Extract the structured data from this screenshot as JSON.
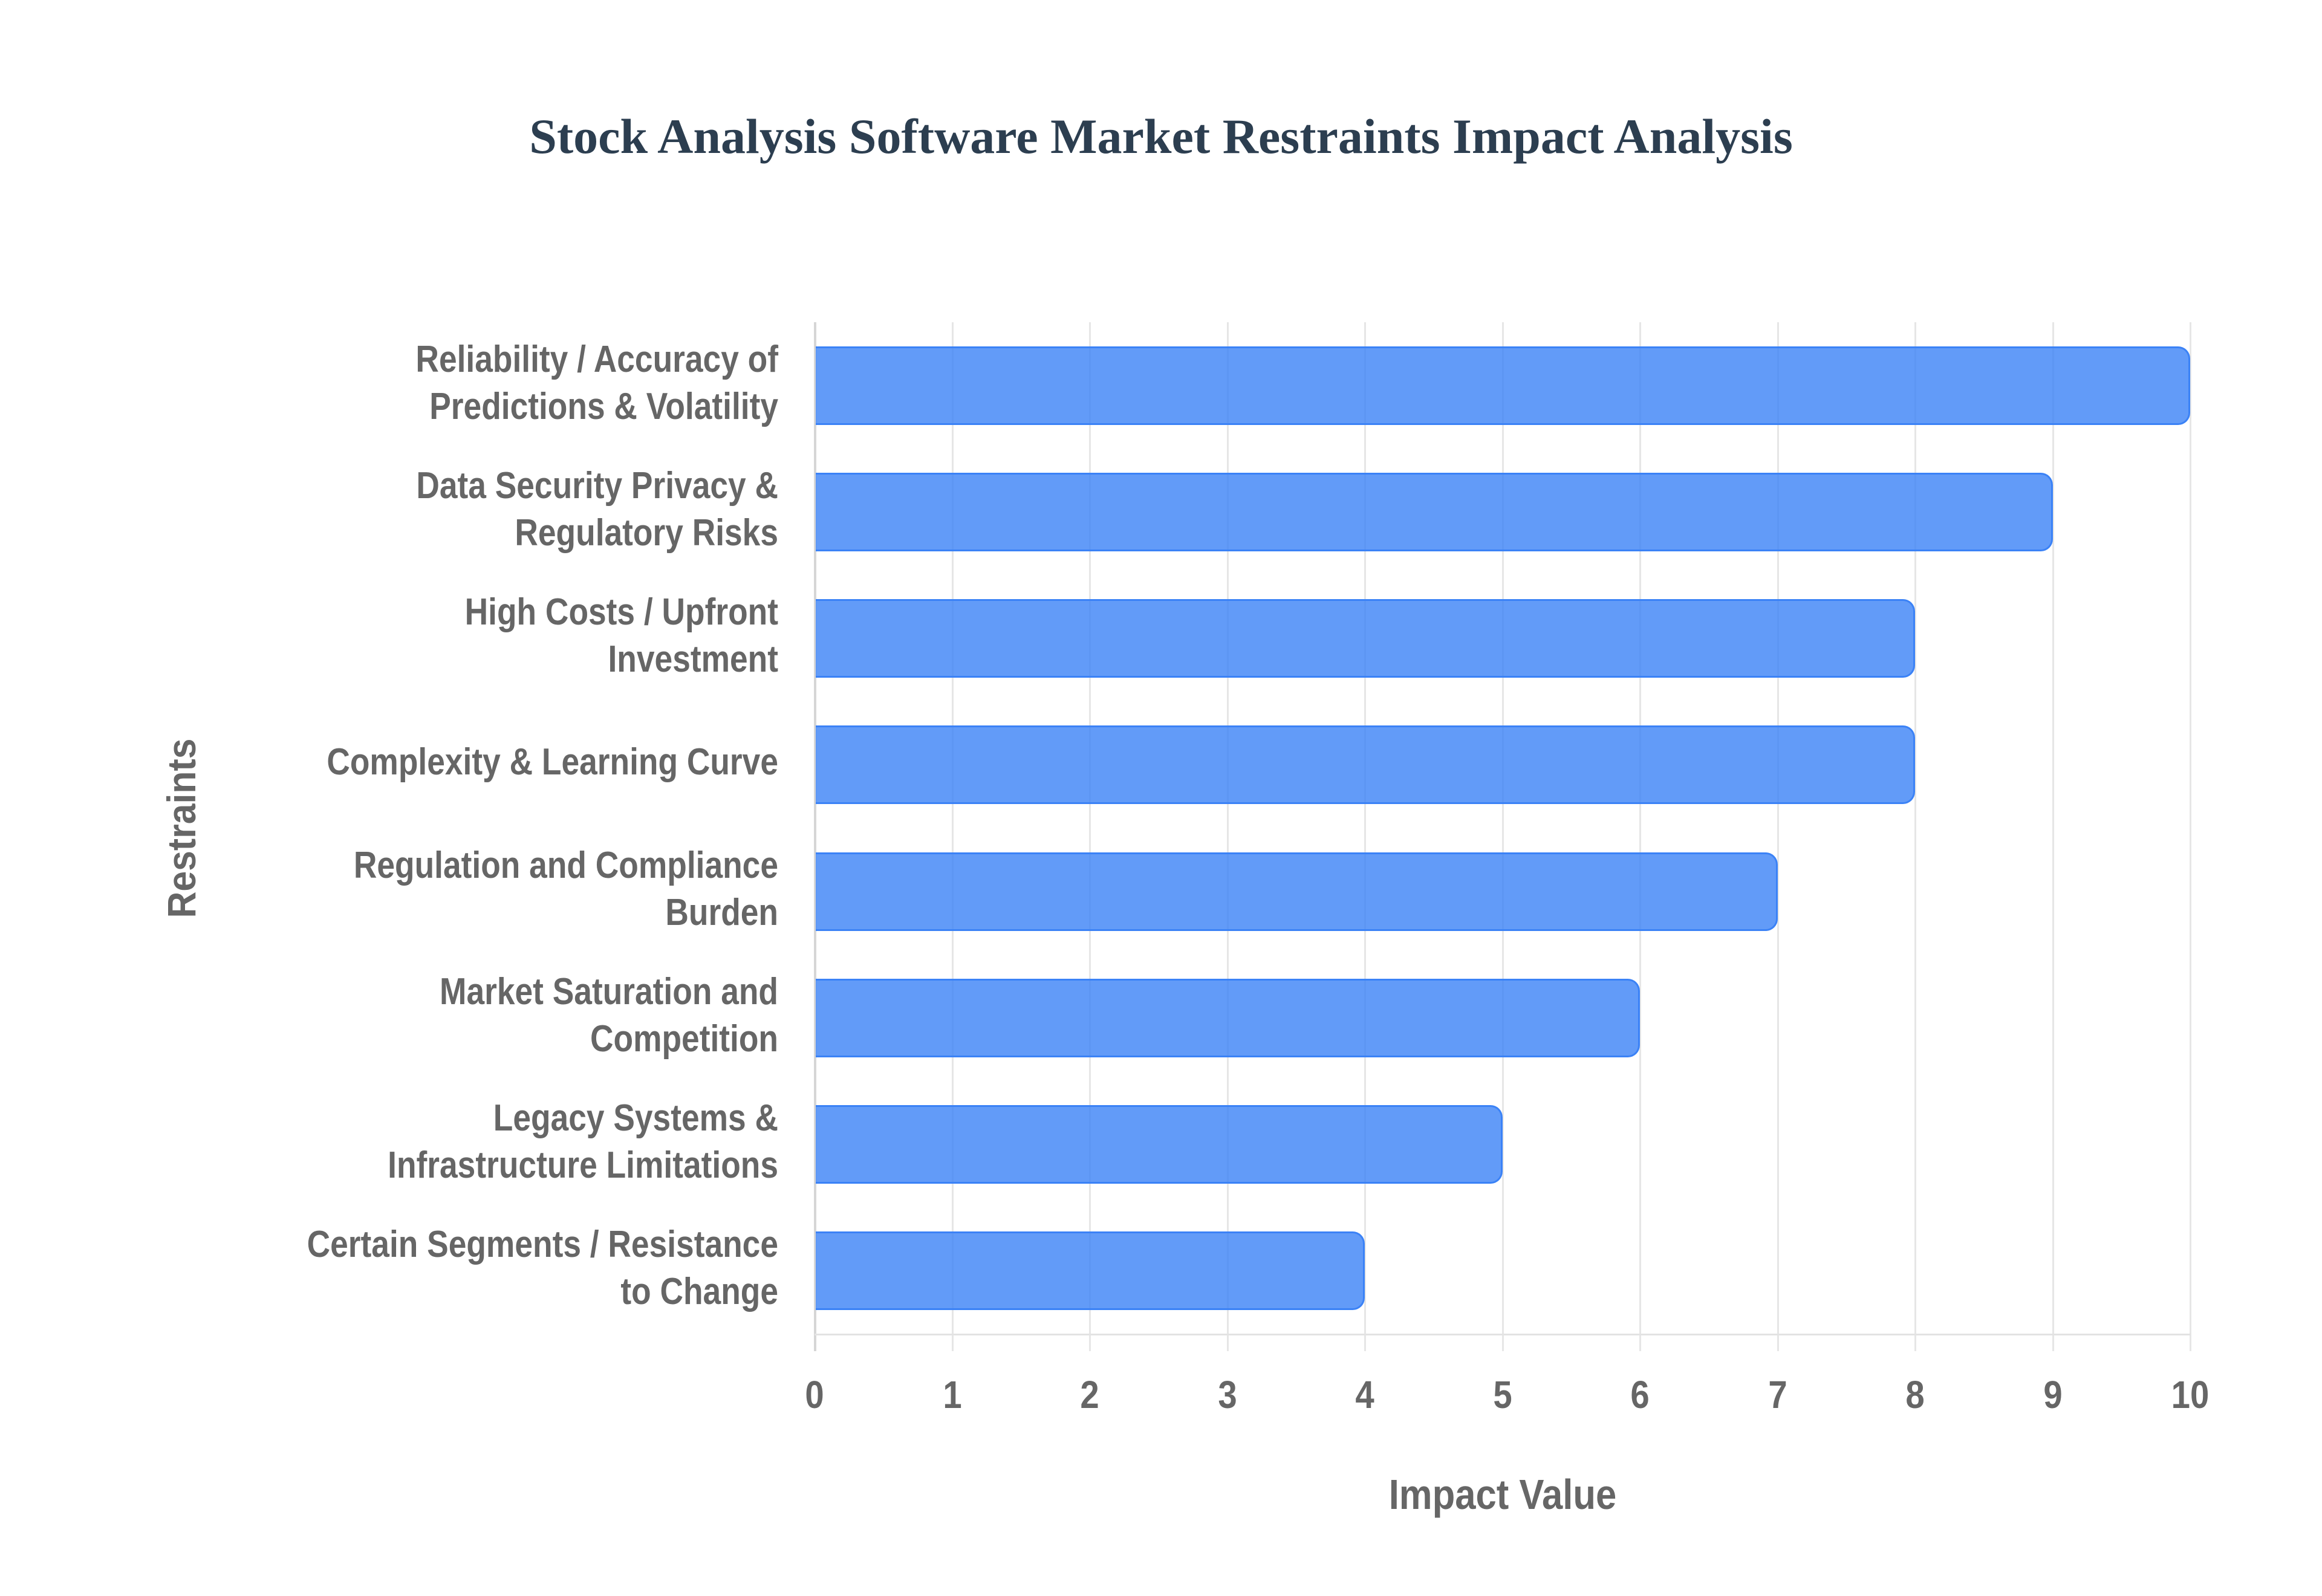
{
  "title": "Stock Analysis Software Market Restraints Impact Analysis",
  "colors": {
    "title": "#2c3e50",
    "axis_text": "#666666",
    "bar_fill": "rgba(59,130,246,0.8)",
    "bar_border": "#3b82f6",
    "grid": "#e6e6e6",
    "background": "#ffffff"
  },
  "axes": {
    "x_label": "Impact Value",
    "y_label": "Restraints",
    "x_ticks": [
      "0",
      "1",
      "2",
      "3",
      "4",
      "5",
      "6",
      "7",
      "8",
      "9",
      "10"
    ]
  },
  "categories": [
    {
      "lines": [
        "Reliability / Accuracy of",
        "Predictions & Volatility"
      ],
      "value": 10
    },
    {
      "lines": [
        "Data Security Privacy &",
        "Regulatory Risks"
      ],
      "value": 9
    },
    {
      "lines": [
        "High Costs / Upfront",
        "Investment"
      ],
      "value": 8
    },
    {
      "lines": [
        "Complexity & Learning Curve"
      ],
      "value": 8
    },
    {
      "lines": [
        "Regulation and Compliance",
        "Burden"
      ],
      "value": 7
    },
    {
      "lines": [
        "Market Saturation and",
        "Competition"
      ],
      "value": 6
    },
    {
      "lines": [
        "Legacy Systems &",
        "Infrastructure Limitations"
      ],
      "value": 5
    },
    {
      "lines": [
        "Certain Segments / Resistance",
        "to Change"
      ],
      "value": 4
    }
  ],
  "chart_data": {
    "type": "bar",
    "orientation": "horizontal",
    "title": "Stock Analysis Software Market Restraints Impact Analysis",
    "xlabel": "Impact Value",
    "ylabel": "Restraints",
    "categories": [
      "Reliability / Accuracy of Predictions & Volatility",
      "Data Security Privacy & Regulatory Risks",
      "High Costs / Upfront Investment",
      "Complexity & Learning Curve",
      "Regulation and Compliance Burden",
      "Market Saturation and Competition",
      "Legacy Systems & Infrastructure Limitations",
      "Certain Segments / Resistance to Change"
    ],
    "values": [
      10,
      9,
      8,
      8,
      7,
      6,
      5,
      4
    ],
    "xlim": [
      0,
      10
    ],
    "x_ticks": [
      0,
      1,
      2,
      3,
      4,
      5,
      6,
      7,
      8,
      9,
      10
    ],
    "grid": true,
    "legend": null
  }
}
